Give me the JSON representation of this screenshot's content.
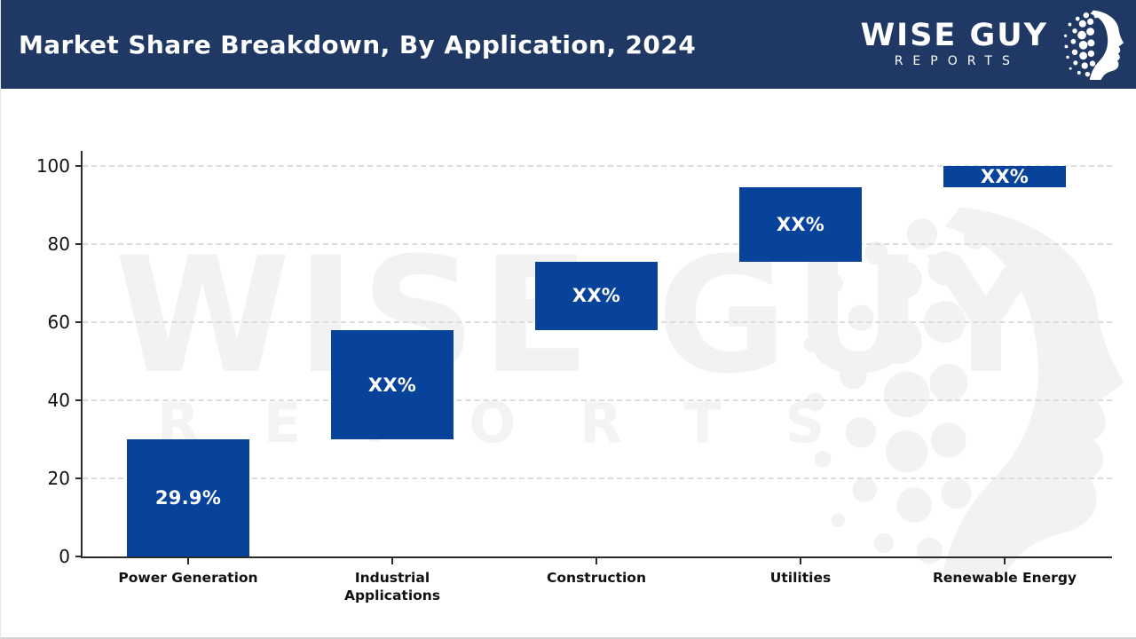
{
  "header": {
    "title": "Market Share Breakdown, By Application, 2024",
    "background_color": "#203864",
    "logo": {
      "line1": "WISE GUY",
      "line2": "REPORTS"
    }
  },
  "watermark": {
    "line1": "WISE GUY",
    "line2": "REPORTS"
  },
  "chart_data": {
    "type": "bar",
    "variant": "floating-waterfall",
    "title": "Market Share Breakdown, By Application, 2024",
    "categories": [
      "Power Generation",
      "Industrial Applications",
      "Construction",
      "Utilities",
      "Renewable Energy"
    ],
    "segments": [
      {
        "category": "Power Generation",
        "start": 0,
        "end": 29.9,
        "label": "29.9%"
      },
      {
        "category": "Industrial Applications",
        "start": 29.9,
        "end": 58.0,
        "label": "XX%"
      },
      {
        "category": "Construction",
        "start": 58.0,
        "end": 75.5,
        "label": "XX%"
      },
      {
        "category": "Utilities",
        "start": 75.5,
        "end": 94.5,
        "label": "XX%"
      },
      {
        "category": "Renewable Energy",
        "start": 94.5,
        "end": 100,
        "label": "XX%"
      }
    ],
    "xlabel": "",
    "ylabel": "",
    "yticks": [
      0,
      20,
      40,
      60,
      80,
      100
    ],
    "ylim": [
      0,
      100
    ],
    "bar_color": "#07439b",
    "grid": "horizontal-dashed",
    "gridline_color": "#dcdcdc",
    "legend_position": "none"
  }
}
